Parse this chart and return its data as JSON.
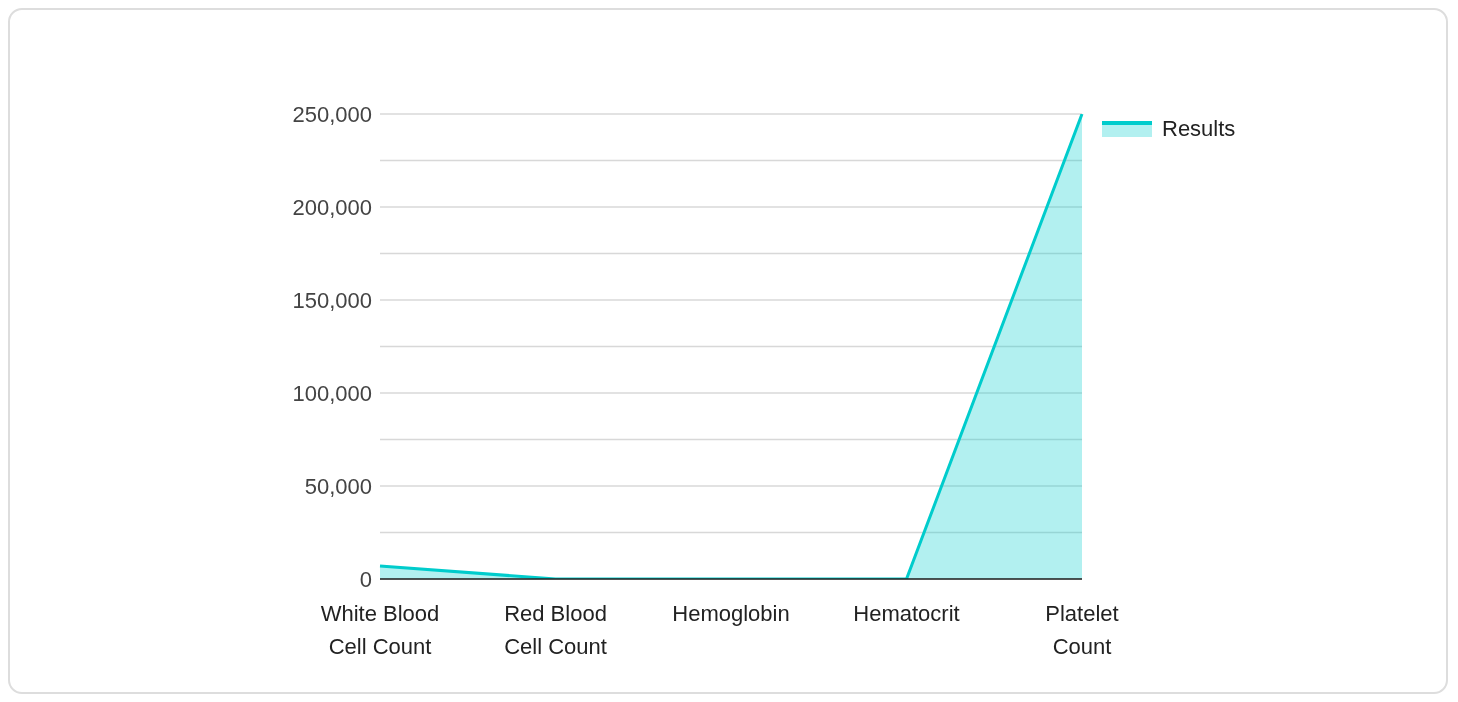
{
  "chart_data": {
    "type": "area",
    "categories": [
      "White Blood Cell Count",
      "Red Blood Cell Count",
      "Hemoglobin",
      "Hematocrit",
      "Platelet Count"
    ],
    "series": [
      {
        "name": "Results",
        "color": "#00cccc",
        "values": [
          7000,
          0,
          0,
          0,
          250000
        ]
      }
    ],
    "ylim": [
      0,
      250000
    ],
    "yticks": [
      0,
      {
        "value": 25000,
        "label": null
      },
      {
        "value": 50000,
        "label": "50,000"
      },
      {
        "value": 75000,
        "label": null
      },
      {
        "value": 100000,
        "label": "100,000"
      },
      {
        "value": 125000,
        "label": null
      },
      {
        "value": 150000,
        "label": "150,000"
      },
      {
        "value": 175000,
        "label": null
      },
      {
        "value": 200000,
        "label": "200,000"
      },
      {
        "value": 225000,
        "label": null
      },
      {
        "value": 250000,
        "label": "250,000"
      }
    ],
    "grid": "y",
    "legend": "top right"
  }
}
